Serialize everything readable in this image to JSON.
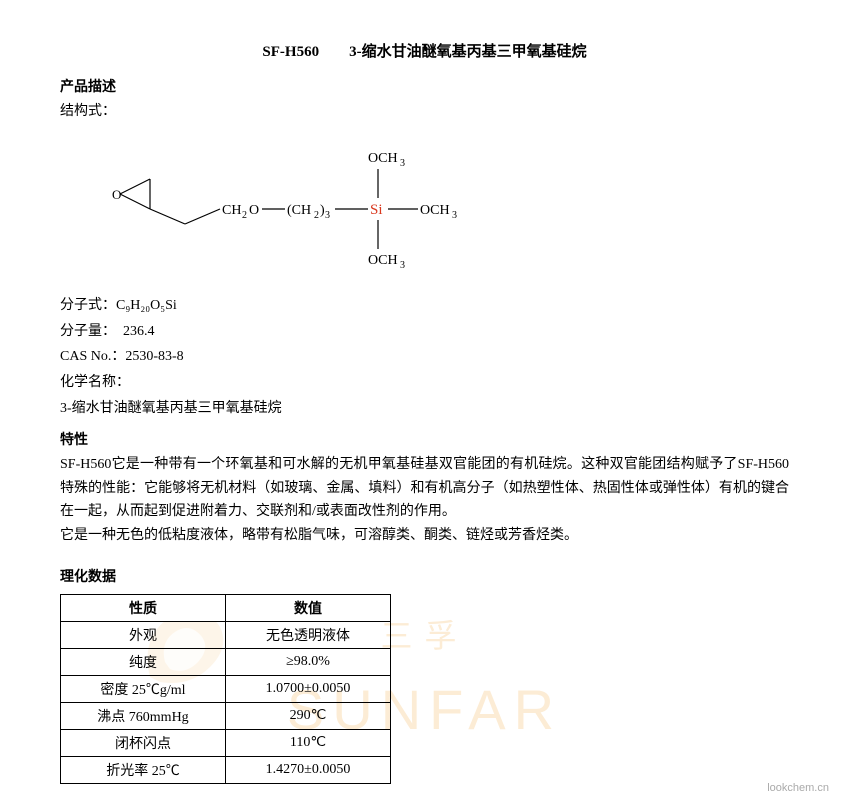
{
  "title": "SF-H560　　3-缩水甘油醚氧基丙基三甲氧基硅烷",
  "section1": {
    "heading": "产品描述",
    "structure_label": "结构式：",
    "molecular_formula_label": "分子式：",
    "molecular_formula_value": "C₉H₂₀O₅Si",
    "molecular_weight_label": "分子量：　",
    "molecular_weight_value": "236.4",
    "cas_label": "CAS No.：",
    "cas_value": "2530-83-8",
    "chem_name_label": "化学名称：",
    "chem_name_value": "3-缩水甘油醚氧基丙基三甲氧基硅烷"
  },
  "section2": {
    "heading": "特性",
    "para1": "SF-H560它是一种带有一个环氧基和可水解的无机甲氧基硅基双官能团的有机硅烷。这种双官能团结构赋予了SF-H560特殊的性能：它能够将无机材料（如玻璃、金属、填料）和有机高分子（如热塑性体、热固性体或弹性体）有机的键合在一起，从而起到促进附着力、交联剂和/或表面改性剂的作用。",
    "para2": "它是一种无色的低粘度液体，略带有松脂气味，可溶醇类、酮类、链烃或芳香烃类。"
  },
  "section3": {
    "heading": "理化数据",
    "table": {
      "headers": [
        "性质",
        "数值"
      ],
      "rows": [
        [
          "外观",
          "无色透明液体"
        ],
        [
          "纯度",
          "≥98.0%"
        ],
        [
          "密度 25℃g/ml",
          "1.0700±0.0050"
        ],
        [
          "沸点 760mmHg",
          "290℃"
        ],
        [
          "闭杯闪点",
          "110℃"
        ],
        [
          "折光率 25℃",
          "1.4270±0.0050"
        ]
      ]
    }
  },
  "formula": {
    "och3": "OCH₃",
    "ch2o": "CH₂O",
    "ch2_3": "(CH₂)₃",
    "si": "Si",
    "si_color": "#d9381e",
    "line_color": "#000000"
  },
  "watermark": {
    "cn": "三孚",
    "en": "SUNFAR"
  },
  "footer": "lookchem.cn"
}
